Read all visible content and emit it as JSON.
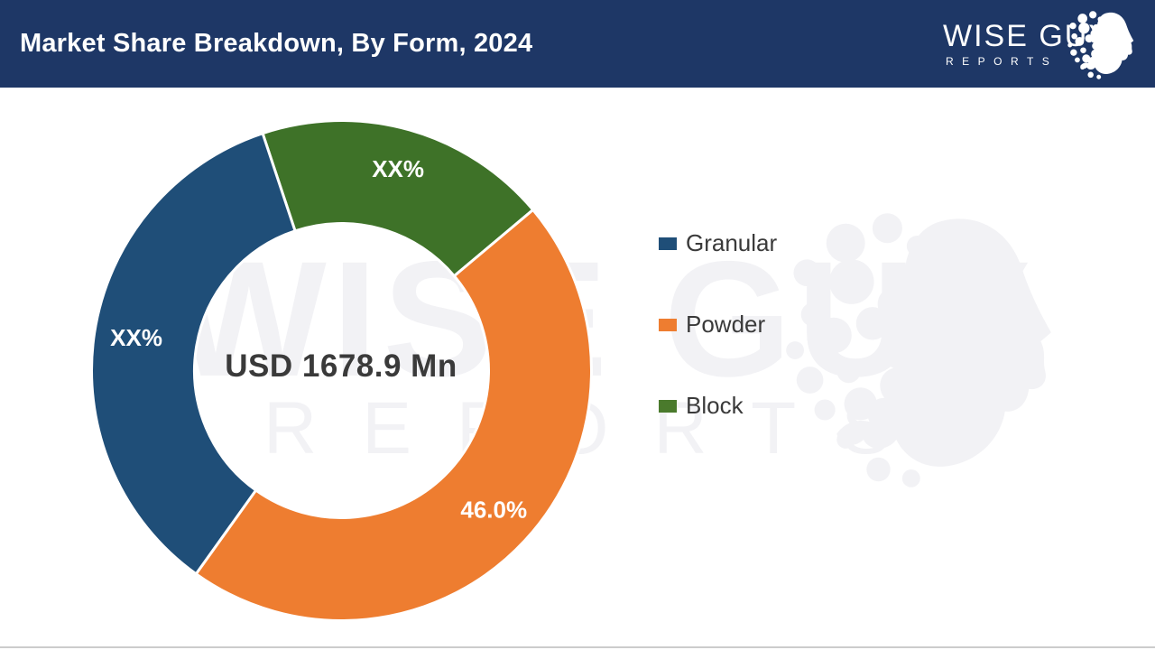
{
  "header": {
    "title": "Market Share Breakdown, By Form, 2024",
    "bg_color": "#1E3766",
    "logo": {
      "line1": "WISE GUY",
      "line2": "REPORTS"
    }
  },
  "watermark": {
    "line1": "WISE GUY",
    "line2": "REPORTS"
  },
  "chart_data": {
    "type": "pie",
    "subtype": "donut",
    "title": "Market Share Breakdown, By Form, 2024",
    "center_label": "USD 1678.9 Mn",
    "start_angle_deg": -18.4,
    "segments": [
      {
        "name": "Block",
        "value_pct": 19,
        "label": "XX%",
        "color": "#3E7228"
      },
      {
        "name": "Powder",
        "value_pct": 46,
        "label": "46.0%",
        "color": "#EE7D30"
      },
      {
        "name": "Granular",
        "value_pct": 35,
        "label": "XX%",
        "color": "#1F4E78"
      }
    ],
    "legend": [
      {
        "label": "Granular",
        "color": "#1F4E78"
      },
      {
        "label": "Powder",
        "color": "#EE7D30"
      },
      {
        "label": "Block",
        "color": "#4A7A2C"
      }
    ],
    "legend_position": "right",
    "segment_label_color": "#ffffff"
  }
}
